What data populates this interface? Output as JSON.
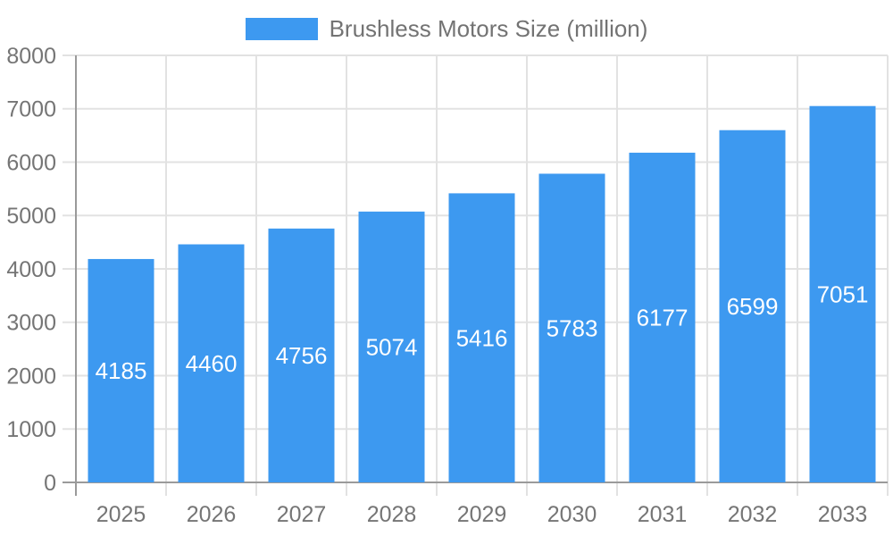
{
  "chart_data": {
    "type": "bar",
    "series_name": "Brushless Motors Size (million)",
    "categories": [
      "2025",
      "2026",
      "2027",
      "2028",
      "2029",
      "2030",
      "2031",
      "2032",
      "2033"
    ],
    "values": [
      4185,
      4460,
      4756,
      5074,
      5416,
      5783,
      6177,
      6599,
      7051
    ],
    "xlabel": "",
    "ylabel": "",
    "ylim": [
      0,
      8000
    ],
    "y_ticks": [
      0,
      1000,
      2000,
      3000,
      4000,
      5000,
      6000,
      7000,
      8000
    ],
    "grid": true,
    "legend_position": "top-center",
    "data_labels_position": "inside-middle",
    "colors": {
      "bar": "#3D99F0",
      "grid_line": "#E2E2E2",
      "axis_line": "#9A9A9A",
      "tick_text": "#757575",
      "legend_text": "#737373",
      "data_label_text": "#FFFFFF",
      "background": "#FFFFFF"
    }
  }
}
